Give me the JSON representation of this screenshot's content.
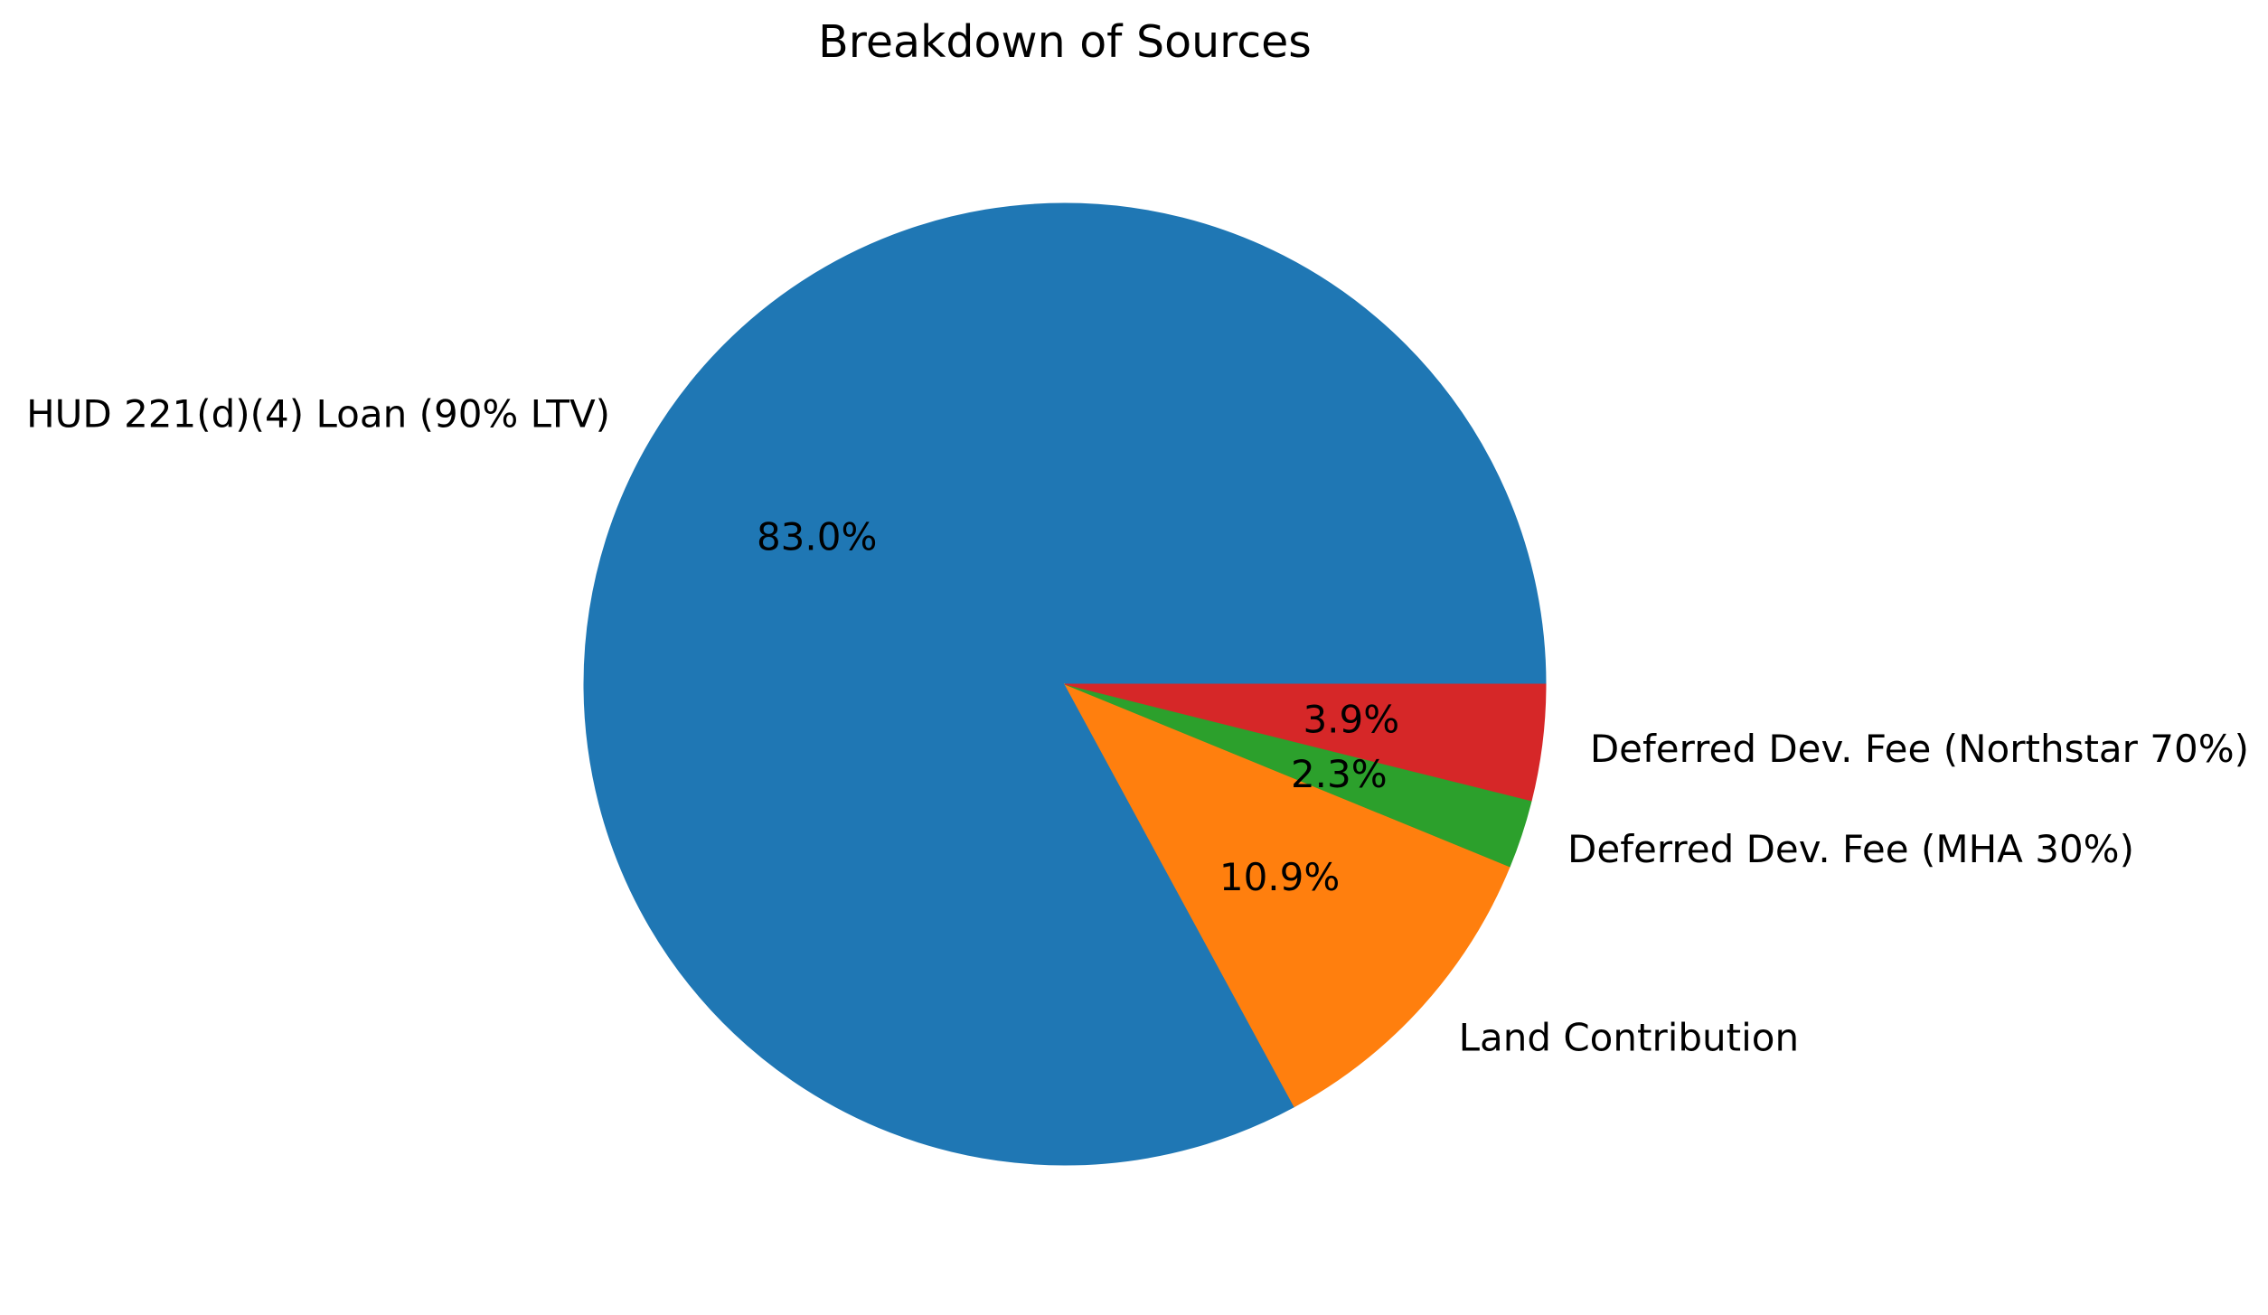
{
  "chart_data": {
    "type": "pie",
    "title": "Breakdown of Sources",
    "slices": [
      {
        "label": "HUD 221(d)(4) Loan (90% LTV)",
        "value": 83.0,
        "pct_label": "83.0%",
        "color": "#1f77b4"
      },
      {
        "label": "Land Contribution",
        "value": 10.9,
        "pct_label": "10.9%",
        "color": "#ff7f0e"
      },
      {
        "label": "Deferred Dev. Fee (MHA 30%)",
        "value": 2.3,
        "pct_label": "2.3%",
        "color": "#2ca02c"
      },
      {
        "label": "Deferred Dev. Fee (Northstar 70%)",
        "value": 3.9,
        "pct_label": "3.9%",
        "color": "#d62728"
      }
    ],
    "start_angle": 0,
    "direction": "counterclockwise",
    "legend": "none",
    "label_position": "outside",
    "pct_position": "inside",
    "background": "#ffffff",
    "text_color": "#000000"
  }
}
